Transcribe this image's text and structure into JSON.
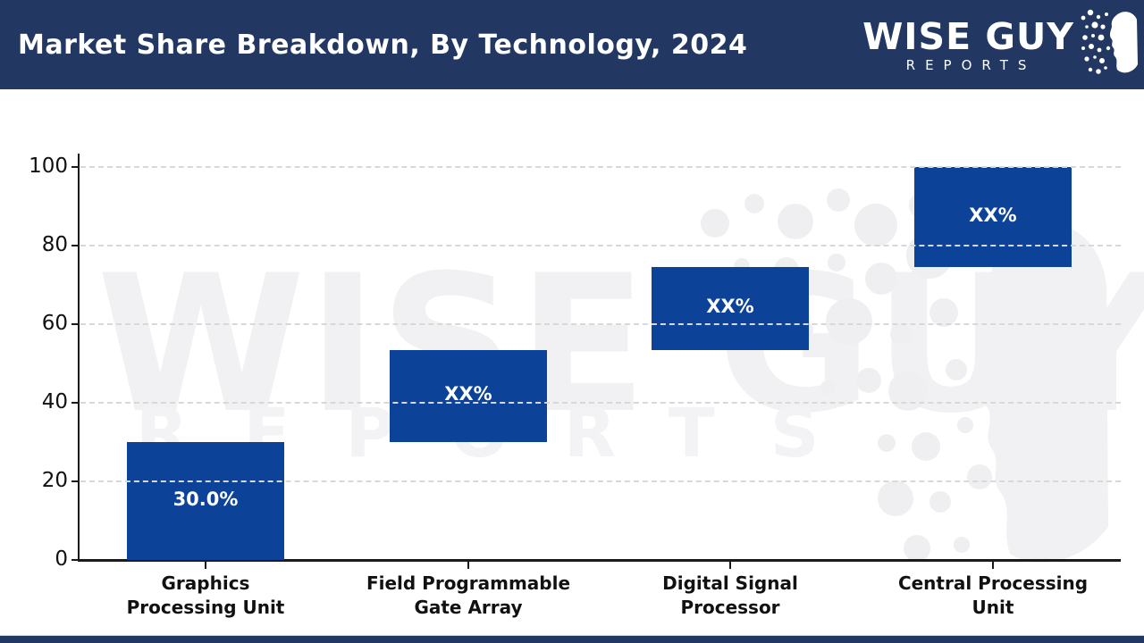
{
  "header": {
    "title": "Market Share Breakdown, By Technology, 2024",
    "logo_line1": "WISE GUY",
    "logo_line2": "REPORTS"
  },
  "watermark": {
    "line1": "WISE GUY",
    "line2": "REPORTS"
  },
  "colors": {
    "header_bg": "#223862",
    "bar_blue": "#0C4398",
    "grid_grey": "#d8d8d8",
    "watermark_grey": "#f1f1f3"
  },
  "chart_data": {
    "type": "bar",
    "variant": "floating-waterfall",
    "title": "Market Share Breakdown, By Technology, 2024",
    "categories": [
      "Graphics Processing Unit",
      "Field Programmable Gate Array",
      "Digital Signal Processor",
      "Central Processing Unit"
    ],
    "category_lines": [
      [
        "Graphics",
        "Processing Unit"
      ],
      [
        "Field Programmable",
        "Gate Array"
      ],
      [
        "Digital Signal",
        "Processor"
      ],
      [
        "Central Processing",
        "Unit"
      ]
    ],
    "segments": [
      {
        "category": "Graphics Processing Unit",
        "start": 0,
        "end": 30,
        "label": "30.0%"
      },
      {
        "category": "Field Programmable Gate Array",
        "start": 30,
        "end": 53.5,
        "label": "XX%"
      },
      {
        "category": "Digital Signal Processor",
        "start": 53.5,
        "end": 74.5,
        "label": "XX%"
      },
      {
        "category": "Central Processing Unit",
        "start": 74.5,
        "end": 100,
        "label": "XX%"
      }
    ],
    "ylim": [
      0,
      100
    ],
    "yticks": [
      0,
      20,
      40,
      60,
      80,
      100
    ],
    "xlabel": "",
    "ylabel": "",
    "grid": "horizontal-dashed-over-bars",
    "legend": "none",
    "bar_label_color": "#FFFFFF"
  }
}
